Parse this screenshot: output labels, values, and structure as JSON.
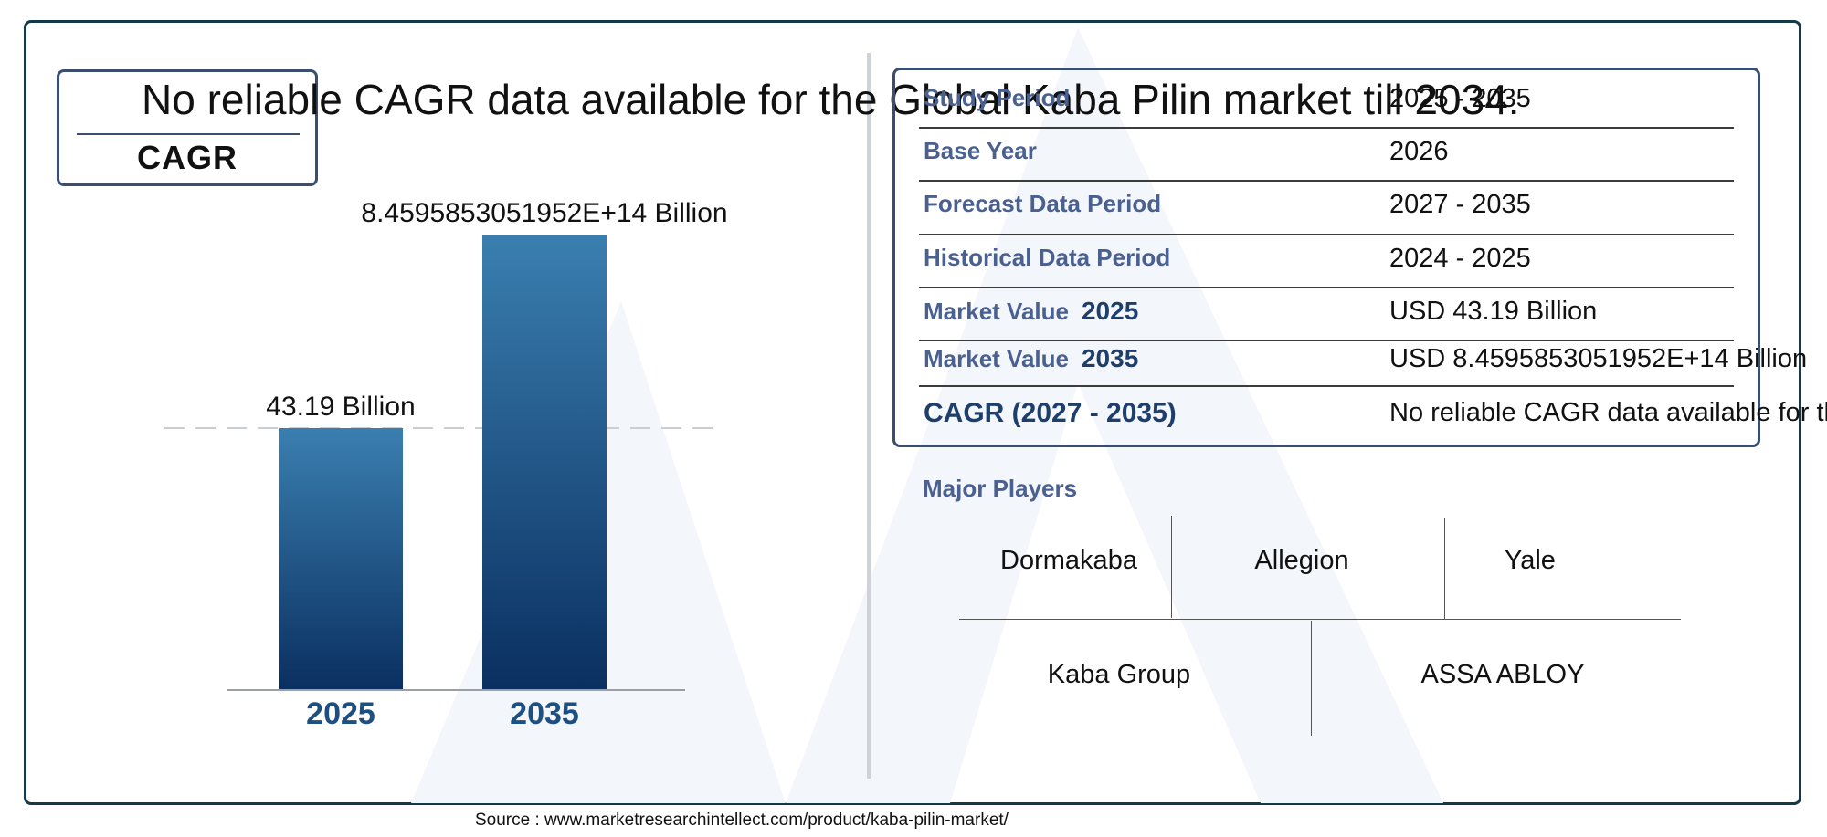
{
  "headline": "No reliable CAGR data available for the Global Kaba Pilin market till 2034.",
  "cagr_label": "CAGR",
  "chart_data": {
    "type": "bar",
    "categories": [
      "2025",
      "2035"
    ],
    "values": [
      43.19,
      845958530519520
    ],
    "data_labels": [
      "43.19 Billion",
      "8.4595853051952E+14 Billion"
    ],
    "bar_color": "#1d4f80"
  },
  "info_table": [
    {
      "label": "Study Period",
      "year": "",
      "value": "2025 - 2035"
    },
    {
      "label": "Base Year",
      "year": "",
      "value": "2026"
    },
    {
      "label": "Forecast Data Period",
      "year": "",
      "value": "2027 - 2035"
    },
    {
      "label": "Historical Data Period",
      "year": "",
      "value": "2024 - 2025"
    },
    {
      "label": "Market Value",
      "year": "2025",
      "value": "USD 43.19 Billion"
    },
    {
      "label": "Market Value",
      "year": "2035",
      "value": "USD 8.4595853051952E+14 Billion"
    },
    {
      "label": "CAGR (2027 - 2035)",
      "year": "",
      "value": "No reliable CAGR data available for th"
    }
  ],
  "players_title": "Major Players",
  "players": [
    "Dormakaba",
    "Allegion",
    "Yale",
    "Kaba Group",
    "ASSA ABLOY"
  ],
  "source": "Source : www.marketresearchintellect.com/product/kaba-pilin-market/"
}
